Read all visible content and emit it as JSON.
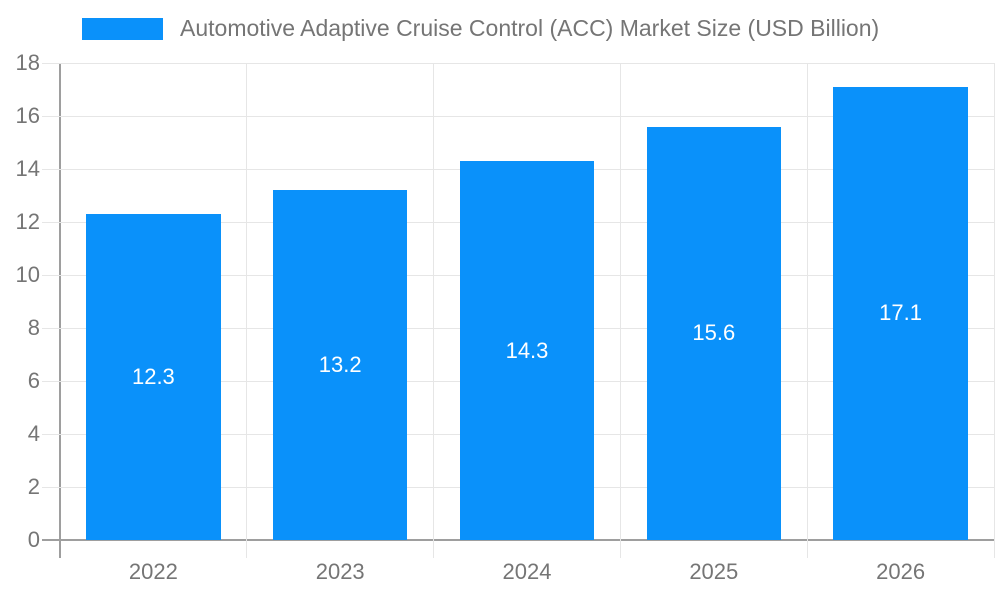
{
  "chart_data": {
    "type": "bar",
    "title": "Automotive Adaptive Cruise Control (ACC) Market Size (USD Billion)",
    "categories": [
      "2022",
      "2023",
      "2024",
      "2025",
      "2026"
    ],
    "values": [
      12.3,
      13.2,
      14.3,
      15.6,
      17.1
    ],
    "value_labels": [
      "12.3",
      "13.2",
      "14.3",
      "15.6",
      "17.1"
    ],
    "xlabel": "",
    "ylabel": "",
    "ylim": [
      0,
      18
    ],
    "ytick_step": 2,
    "ytick_labels": [
      "0",
      "2",
      "4",
      "6",
      "8",
      "10",
      "12",
      "14",
      "16",
      "18"
    ],
    "grid": true,
    "legend_position": "top-left",
    "bar_width_fraction": 0.72,
    "colors": {
      "bar": "#0a91fa",
      "label_text": "#ffffff",
      "axis_text": "#757575",
      "gridline": "#e6e6e6",
      "axis_line": "#9e9e9e",
      "background": "#ffffff"
    }
  }
}
